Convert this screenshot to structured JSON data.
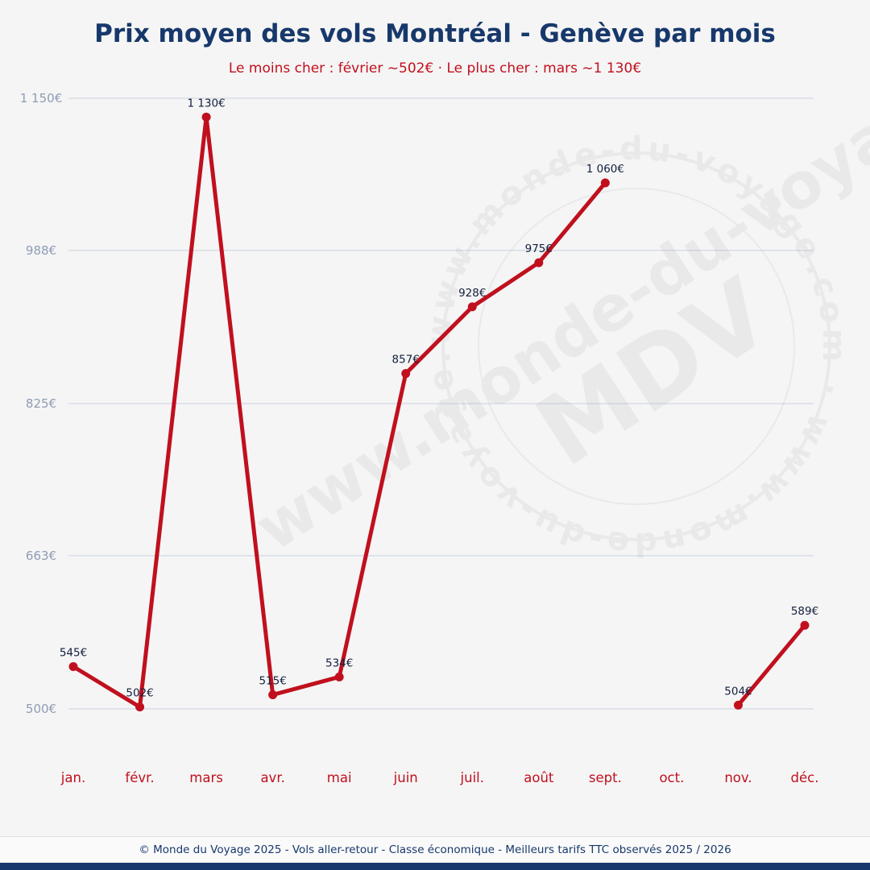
{
  "page": {
    "title": "Prix moyen des vols Montréal - Genève par mois",
    "subtitle": "Le moins cher : février ~502€ · Le plus cher : mars ~1 130€",
    "footer": "© Monde du Voyage 2025 - Vols aller-retour - Classe économique - Meilleurs tarifs TTC observés 2025 / 2026"
  },
  "watermark": {
    "ring_text": "www.monde-du-voyage.com · www.monde-du-voyage.com ·",
    "diagonal_text": "www.monde-du-voyage",
    "center_text": "MDV"
  },
  "colors": {
    "accent_red": "#c0101e",
    "navy": "#17386b",
    "tick_gray": "#8e9cb5",
    "grid": "#c9d1e0",
    "label_dark": "#121f3d",
    "background": "#f5f5f5"
  },
  "chart_data": {
    "type": "line",
    "title": "Prix moyen des vols Montréal - Genève par mois",
    "xlabel": "",
    "ylabel": "",
    "categories": [
      "jan.",
      "févr.",
      "mars",
      "avr.",
      "mai",
      "juin",
      "juil.",
      "août",
      "sept.",
      "oct.",
      "nov.",
      "déc."
    ],
    "values": [
      545,
      502,
      1130,
      515,
      534,
      857,
      928,
      975,
      1060,
      null,
      504,
      589
    ],
    "point_labels": [
      "545€",
      "502€",
      "1 130€",
      "515€",
      "534€",
      "857€",
      "928€",
      "975€",
      "1 060€",
      "",
      "504€",
      "589€"
    ],
    "missing_categories": [
      "oct."
    ],
    "y_ticks": [
      1150,
      988,
      825,
      663,
      500
    ],
    "y_tick_labels": [
      "1 150€",
      "988€",
      "825€",
      "663€",
      "500€"
    ],
    "ylim": [
      500,
      1150
    ],
    "grid": true,
    "legend": "none",
    "line_color": "#c0101e",
    "marker": "circle"
  }
}
